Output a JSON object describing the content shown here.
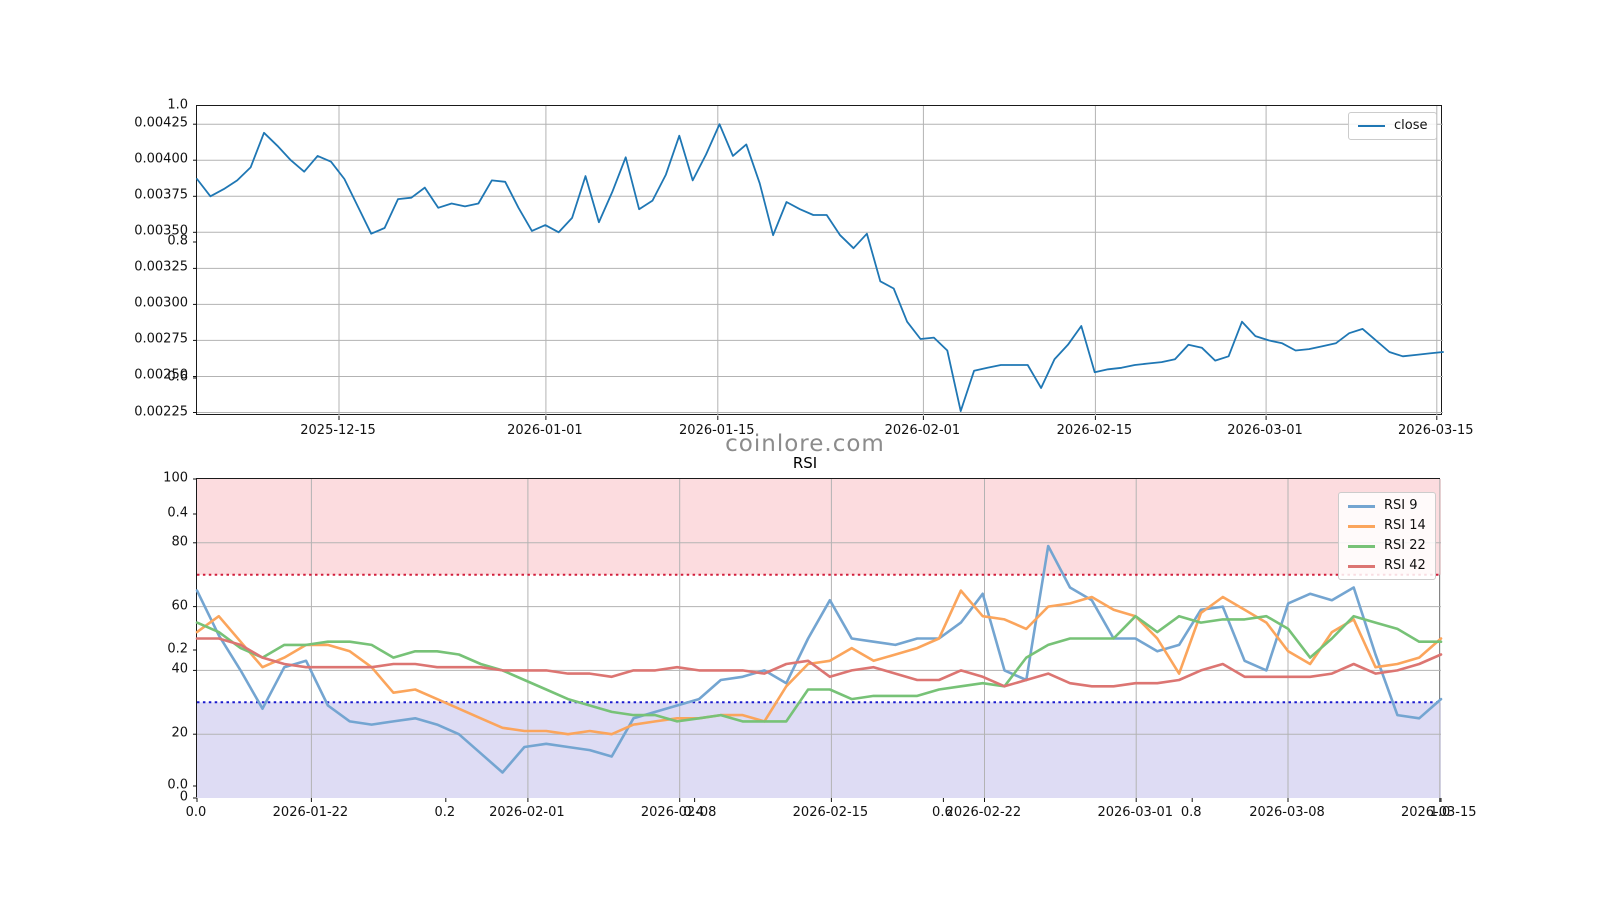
{
  "watermark": "coinlore.com",
  "colors": {
    "close_line": "#1f77b4",
    "rsi9": "#74a5d1",
    "rsi14": "#fba55c",
    "rsi22": "#77c277",
    "rsi42": "#dc7572",
    "overbought_band": "#fcdcdf",
    "oversold_band": "#dedcf4",
    "overbought_line": "#d21f3c",
    "oversold_line": "#1a1acd",
    "grid": "#b3b3b3",
    "watermark": "#8c8c8c"
  },
  "overlay_axis": {
    "x_labels": [
      "0.0",
      "0.2",
      "0.4",
      "0.6",
      "0.8",
      "1.0"
    ],
    "y_labels": [
      "1.0",
      "0.8",
      "0.6",
      "0.4",
      "0.2",
      "0.0"
    ]
  },
  "chart_data": [
    {
      "type": "line",
      "title": "",
      "legend_position": "upper right",
      "grid": true,
      "ylim": [
        0.002226,
        0.004376
      ],
      "y_ticks": [
        "0.00425",
        "0.00400",
        "0.00375",
        "0.00350",
        "0.00325",
        "0.00300",
        "0.00275",
        "0.00250",
        "0.00225"
      ],
      "x_ticks": [
        {
          "label": "2025-12-15",
          "pos": 0.114
        },
        {
          "label": "2026-01-01",
          "pos": 0.28
        },
        {
          "label": "2026-01-15",
          "pos": 0.418
        },
        {
          "label": "2026-02-01",
          "pos": 0.583
        },
        {
          "label": "2026-02-15",
          "pos": 0.721
        },
        {
          "label": "2026-03-01",
          "pos": 0.858
        },
        {
          "label": "2026-03-15",
          "pos": 0.995
        }
      ],
      "series": [
        {
          "name": "close",
          "color_key": "close_line",
          "values": [
            0.00387,
            0.00375,
            0.0038,
            0.00386,
            0.00395,
            0.00419,
            0.0041,
            0.004,
            0.00392,
            0.00403,
            0.00399,
            0.00387,
            0.00368,
            0.00349,
            0.00353,
            0.00373,
            0.00374,
            0.00381,
            0.00367,
            0.0037,
            0.00368,
            0.0037,
            0.00386,
            0.00385,
            0.00367,
            0.00351,
            0.00355,
            0.0035,
            0.0036,
            0.00389,
            0.00357,
            0.00378,
            0.00402,
            0.00366,
            0.00372,
            0.0039,
            0.00417,
            0.00386,
            0.00404,
            0.00425,
            0.00403,
            0.00411,
            0.00384,
            0.00348,
            0.00371,
            0.00366,
            0.00362,
            0.00362,
            0.00348,
            0.00339,
            0.00349,
            0.00316,
            0.00311,
            0.00288,
            0.00276,
            0.00277,
            0.00268,
            0.00226,
            0.00254,
            0.00256,
            0.00258,
            0.00258,
            0.00258,
            0.00242,
            0.00262,
            0.00272,
            0.00285,
            0.00253,
            0.00255,
            0.00256,
            0.00258,
            0.00259,
            0.0026,
            0.00262,
            0.00272,
            0.0027,
            0.00261,
            0.00264,
            0.00288,
            0.00278,
            0.00275,
            0.00273,
            0.00268,
            0.00269,
            0.00271,
            0.00273,
            0.0028,
            0.00283,
            0.00275,
            0.00267,
            0.00264,
            0.00265,
            0.00266,
            0.00267
          ]
        }
      ]
    },
    {
      "type": "line",
      "title": "RSI",
      "legend_position": "upper right",
      "grid": true,
      "ylim": [
        0,
        100
      ],
      "overbought_level": 70,
      "oversold_level": 30,
      "y_ticks": [
        "100",
        "80",
        "60",
        "40",
        "20",
        "0"
      ],
      "x_ticks": [
        {
          "label": "2026-01-22",
          "pos": 0.092
        },
        {
          "label": "2026-02-01",
          "pos": 0.266
        },
        {
          "label": "2026-02-08",
          "pos": 0.388
        },
        {
          "label": "2026-02-15",
          "pos": 0.51
        },
        {
          "label": "2026-02-22",
          "pos": 0.633
        },
        {
          "label": "2026-03-01",
          "pos": 0.755
        },
        {
          "label": "2026-03-08",
          "pos": 0.877
        },
        {
          "label": "2026-03-15",
          "pos": 0.999
        }
      ],
      "series": [
        {
          "name": "RSI 9",
          "color_key": "rsi9",
          "values": [
            65,
            51,
            40,
            28,
            41,
            43,
            29,
            24,
            23,
            24,
            25,
            23,
            20,
            14,
            8,
            16,
            17,
            16,
            15,
            13,
            25,
            27,
            29,
            31,
            37,
            38,
            40,
            36,
            50,
            62,
            50,
            49,
            48,
            50,
            50,
            55,
            64,
            40,
            37,
            79,
            66,
            62,
            50,
            50,
            46,
            48,
            59,
            60,
            43,
            40,
            61,
            64,
            62,
            66,
            45,
            26,
            25,
            31
          ]
        },
        {
          "name": "RSI 14",
          "color_key": "rsi14",
          "values": [
            52,
            57,
            49,
            41,
            44,
            48,
            48,
            46,
            41,
            33,
            34,
            31,
            28,
            25,
            22,
            21,
            21,
            20,
            21,
            20,
            23,
            24,
            25,
            25,
            26,
            26,
            24,
            35,
            42,
            43,
            47,
            43,
            45,
            47,
            50,
            65,
            57,
            56,
            53,
            60,
            61,
            63,
            59,
            57,
            50,
            39,
            58,
            63,
            59,
            55,
            46,
            42,
            52,
            56,
            41,
            42,
            44,
            50
          ]
        },
        {
          "name": "RSI 22",
          "color_key": "rsi22",
          "values": [
            55,
            52,
            47,
            44,
            48,
            48,
            49,
            49,
            48,
            44,
            46,
            46,
            45,
            42,
            40,
            37,
            34,
            31,
            29,
            27,
            26,
            26,
            24,
            25,
            26,
            24,
            24,
            24,
            34,
            34,
            31,
            32,
            32,
            32,
            34,
            35,
            36,
            35,
            44,
            48,
            50,
            50,
            50,
            57,
            52,
            57,
            55,
            56,
            56,
            57,
            53,
            44,
            50,
            57,
            55,
            53,
            49,
            49
          ]
        },
        {
          "name": "RSI 42",
          "color_key": "rsi42",
          "values": [
            50,
            50,
            48,
            44,
            42,
            41,
            41,
            41,
            41,
            42,
            42,
            41,
            41,
            41,
            40,
            40,
            40,
            39,
            39,
            38,
            40,
            40,
            41,
            40,
            40,
            40,
            39,
            42,
            43,
            38,
            40,
            41,
            39,
            37,
            37,
            40,
            38,
            35,
            37,
            39,
            36,
            35,
            35,
            36,
            36,
            37,
            40,
            42,
            38,
            38,
            38,
            38,
            39,
            42,
            39,
            40,
            42,
            45
          ]
        }
      ]
    }
  ]
}
